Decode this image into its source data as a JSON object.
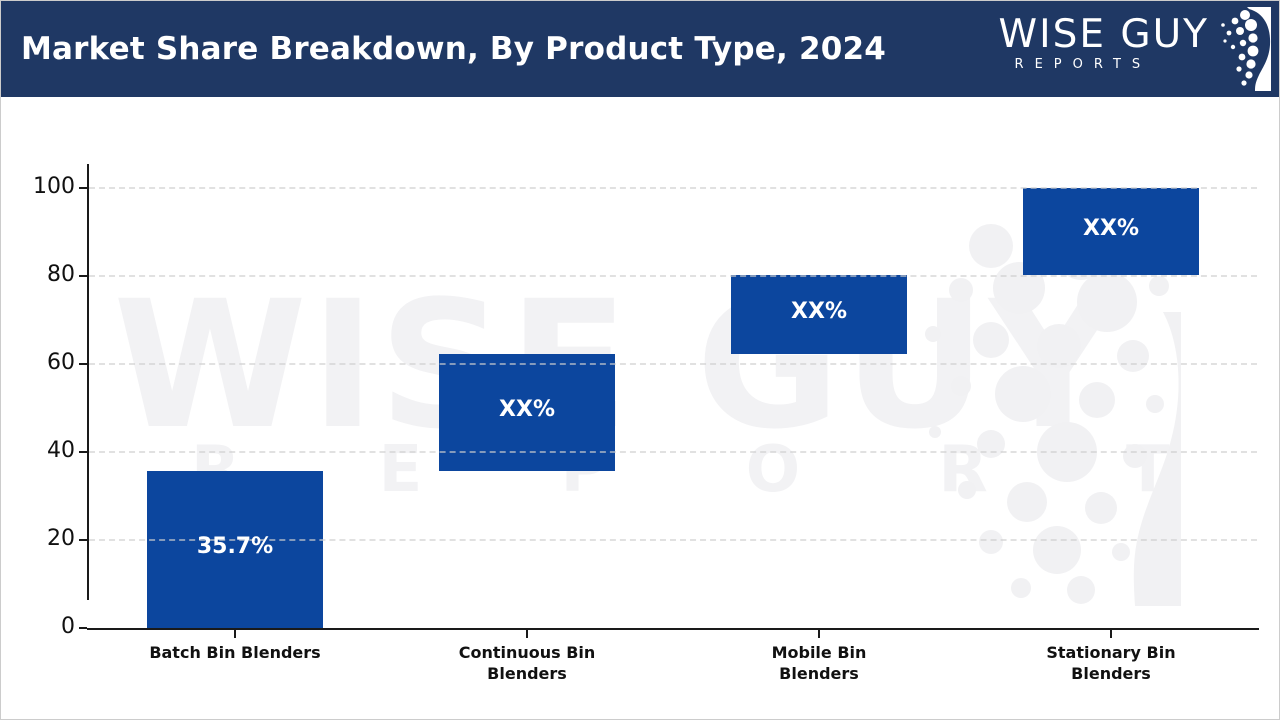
{
  "header": {
    "title": "Market Share Breakdown, By Product Type, 2024",
    "bg_color": "#1F3864",
    "brand": {
      "line1": "WISE GUY",
      "line2": "REPORTS"
    }
  },
  "watermark": {
    "line1": "WISE GUY",
    "line2": "R E P O R T S"
  },
  "chart_data": {
    "type": "bar",
    "subtype": "waterfall-floating-bars",
    "title": "Market Share Breakdown, By Product Type, 2024",
    "categories": [
      "Batch Bin Blenders",
      "Continuous Bin\nBlenders",
      "Mobile Bin\nBlenders",
      "Stationary Bin\nBlenders"
    ],
    "segments": [
      {
        "category": "Batch Bin Blenders",
        "start": 0,
        "end": 35.7,
        "label": "35.7%"
      },
      {
        "category": "Continuous Bin Blenders",
        "start": 35.7,
        "end": 62.3,
        "label": "XX%"
      },
      {
        "category": "Mobile Bin Blenders",
        "start": 62.3,
        "end": 80.3,
        "label": "XX%"
      },
      {
        "category": "Stationary Bin Blenders",
        "start": 80.3,
        "end": 100,
        "label": "XX%"
      }
    ],
    "xlabel": "",
    "ylabel": "",
    "ylim": [
      0,
      100
    ],
    "yticks": [
      0,
      20,
      40,
      60,
      80,
      100
    ],
    "grid": "horizontal dashed, drawn over bars",
    "legend": "none",
    "bar_color": "#0C469E",
    "axis_color": "#1a1a1a"
  }
}
